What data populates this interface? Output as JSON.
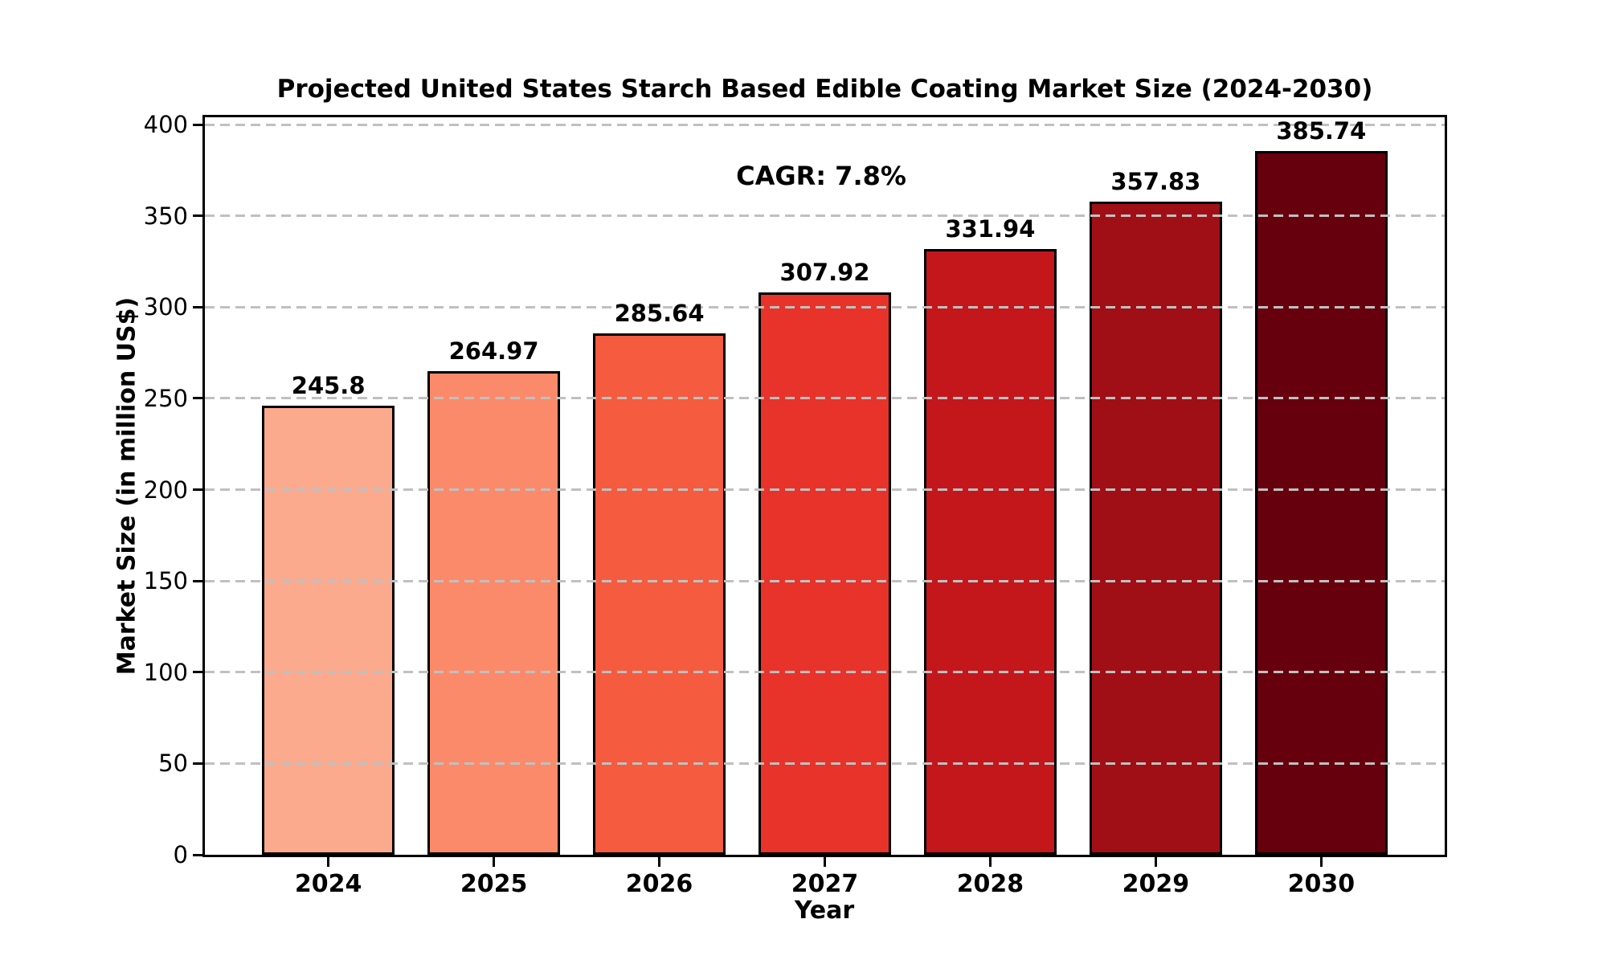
{
  "page": {
    "background_color": "#FFFFFF"
  },
  "chart_data": {
    "type": "bar",
    "title": "Projected United States Starch Based Edible Coating Market Size (2024-2030)",
    "xlabel": "Year",
    "ylabel": "Market Size (in million US$)",
    "categories": [
      "2024",
      "2025",
      "2026",
      "2027",
      "2028",
      "2029",
      "2030"
    ],
    "values": [
      245.8,
      264.97,
      285.64,
      307.92,
      331.94,
      357.83,
      385.74
    ],
    "value_labels": [
      "245.8",
      "264.97",
      "285.64",
      "307.92",
      "331.94",
      "357.83",
      "385.74"
    ],
    "bar_colors": [
      "#FCAA8E",
      "#FB8A6A",
      "#F55B3E",
      "#E7332A",
      "#C3171C",
      "#A00F15",
      "#67000D"
    ],
    "bar_edge_color": "#000000",
    "annotation": {
      "text": "CAGR: 7.8%"
    },
    "ylim": [
      0,
      404
    ],
    "yticks": [
      0,
      50,
      100,
      150,
      200,
      250,
      300,
      350,
      400
    ],
    "ytick_labels": [
      "0",
      "50",
      "100",
      "150",
      "200",
      "250",
      "300",
      "350",
      "400"
    ],
    "grid": {
      "axis": "y",
      "style": "dashed",
      "color": "#C0C0C0",
      "dash": 12,
      "gap": 7
    },
    "legend": null
  }
}
